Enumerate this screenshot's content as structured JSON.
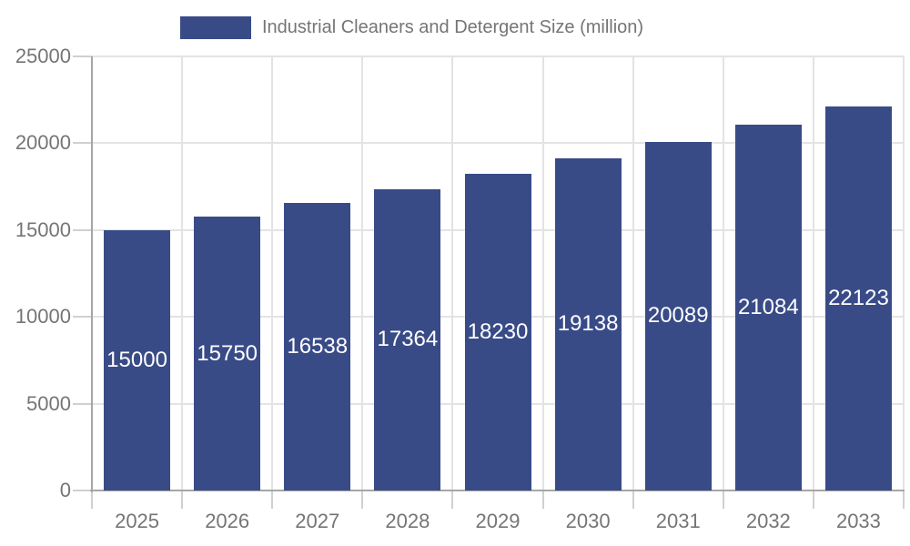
{
  "legend": {
    "label": "Industrial Cleaners and Detergent Size (million)"
  },
  "chart_data": {
    "type": "bar",
    "title": "",
    "xlabel": "",
    "ylabel": "",
    "series_name": "Industrial Cleaners and Detergent Size (million)",
    "categories": [
      "2025",
      "2026",
      "2027",
      "2028",
      "2029",
      "2030",
      "2031",
      "2032",
      "2033"
    ],
    "values": [
      15000,
      15750,
      16538,
      17364,
      18230,
      19138,
      20089,
      21084,
      22123
    ],
    "ylim": [
      0,
      25000
    ],
    "yticks": [
      0,
      5000,
      10000,
      15000,
      20000,
      25000
    ],
    "grid": true,
    "legend_position": "top",
    "value_labels": "inside-middle",
    "colors": {
      "bar": "#394b87",
      "value_label": "#ffffff",
      "axis_text": "#757575",
      "grid_line": "#e3e3e3",
      "tick_line": "#d0d0d0",
      "axis_line": "#a6a6a6",
      "background": "#ffffff"
    }
  }
}
